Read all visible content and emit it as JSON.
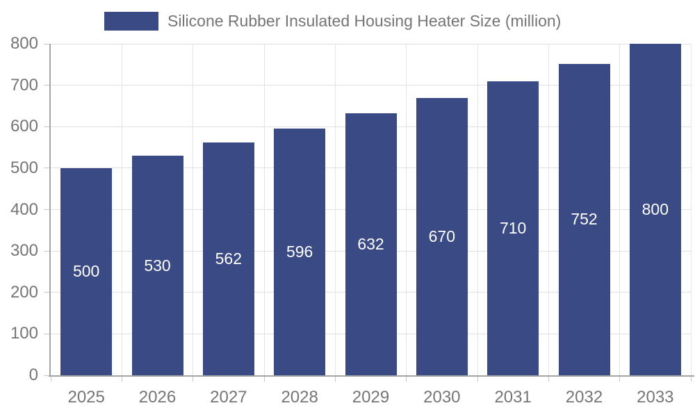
{
  "chart_data": {
    "type": "bar",
    "legend_label": "Silicone Rubber Insulated Housing Heater Size (million)",
    "categories": [
      "2025",
      "2026",
      "2027",
      "2028",
      "2029",
      "2030",
      "2031",
      "2032",
      "2033"
    ],
    "series": [
      {
        "name": "Silicone Rubber Insulated Housing Heater Size (million)",
        "values": [
          500,
          530,
          562,
          596,
          632,
          670,
          710,
          752,
          800
        ]
      }
    ],
    "title": "",
    "xlabel": "",
    "ylabel": "",
    "ylim": [
      0,
      800
    ],
    "ytick_step": 100,
    "grid": "both",
    "legend_position": "top",
    "value_label_position": "inside-center",
    "colors": {
      "bar": "#3A4A85",
      "grid_h": "#E0E0E0",
      "grid_v": "#E4E4E4",
      "axis": "#A4A4A4",
      "tick": "#C6C6C6",
      "tick_label": "#757575",
      "legend_text": "#757575",
      "value_label": "#FFFFFF",
      "background": "#FFFFFF"
    }
  }
}
